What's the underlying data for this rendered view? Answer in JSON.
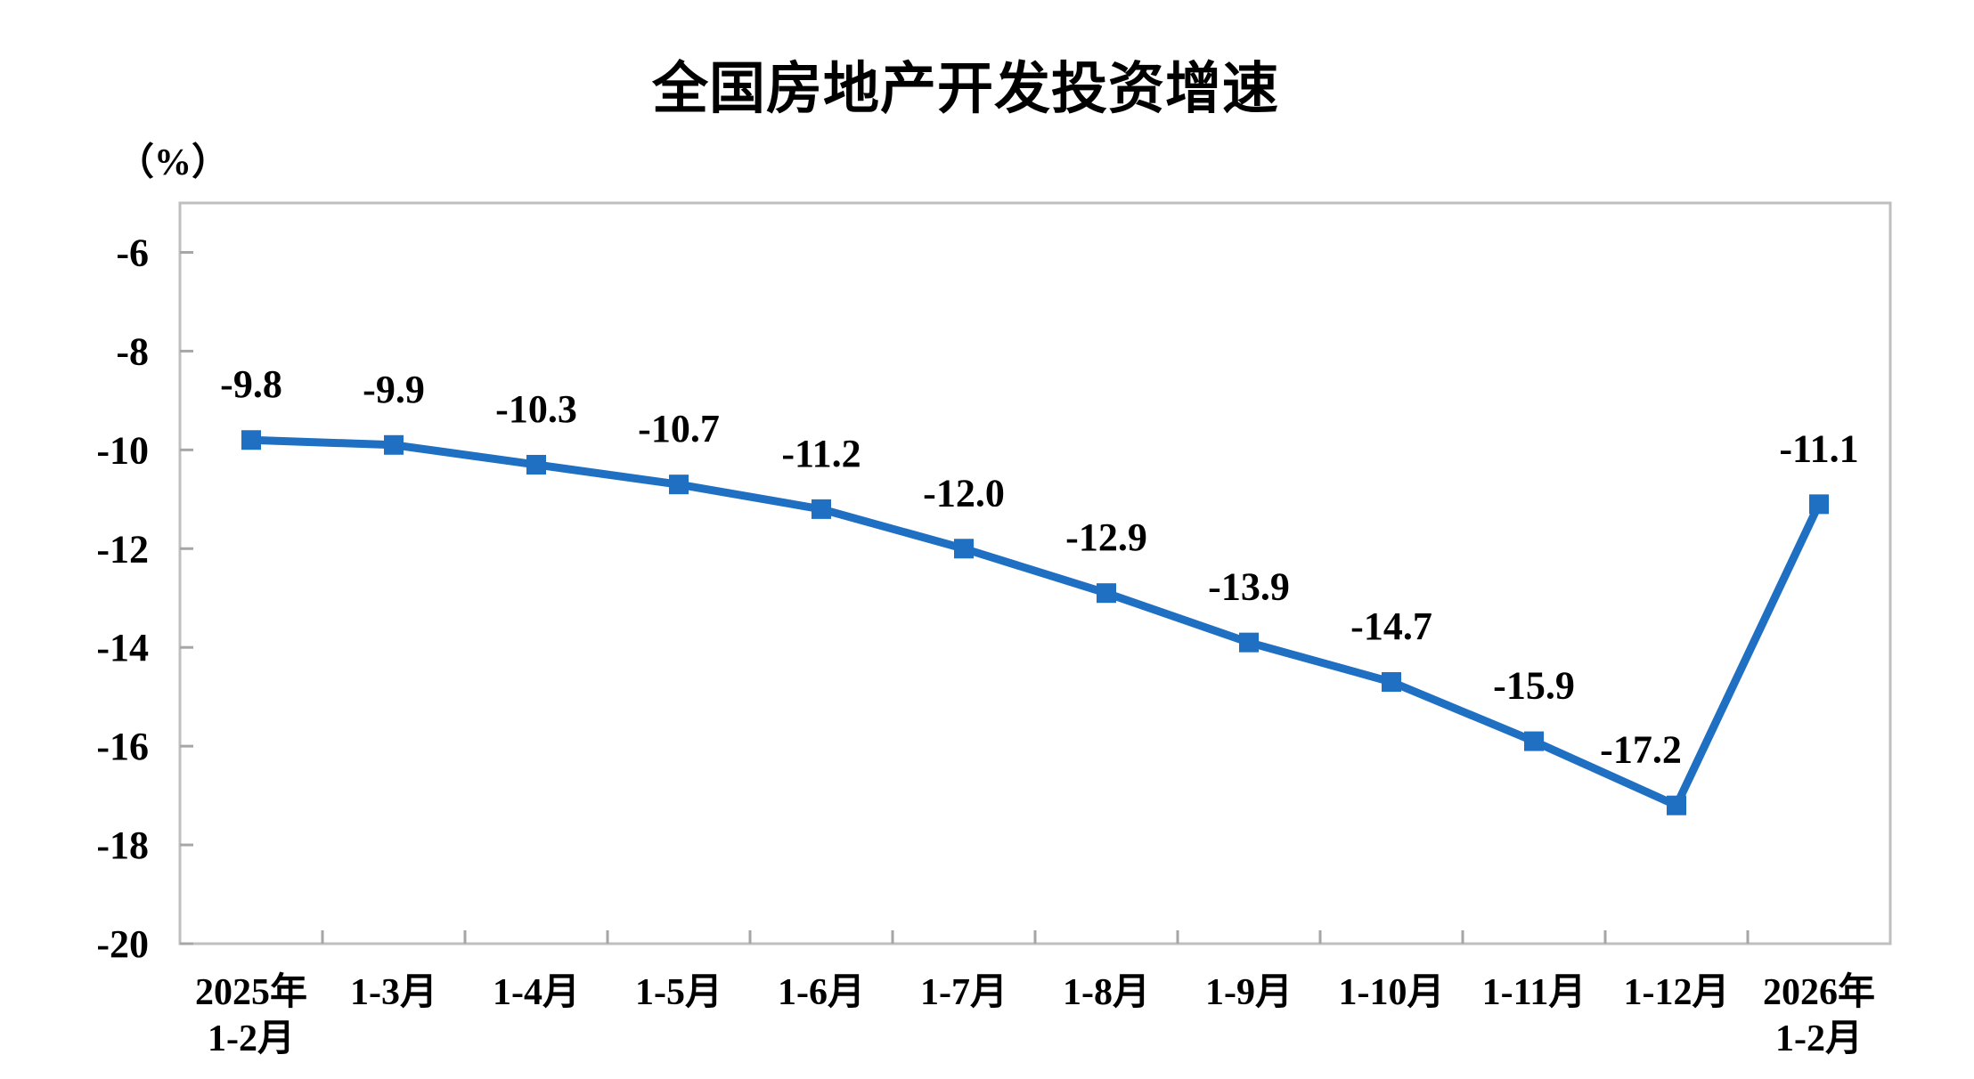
{
  "title": "全国房地产开发投资增速",
  "unit_label": "（%）",
  "colors": {
    "series_blue": "#1F6FC2",
    "axis_border": "#BFBFBF",
    "tick_mark": "#A6A6A6",
    "text": "#000000",
    "background": "#FFFFFF"
  },
  "chart_data": {
    "type": "line",
    "title": "全国房地产开发投资增速",
    "ylabel": "（%）",
    "xlabel": "",
    "categories": [
      "2025年\n1-2月",
      "1-3月",
      "1-4月",
      "1-5月",
      "1-6月",
      "1-7月",
      "1-8月",
      "1-9月",
      "1-10月",
      "1-11月",
      "1-12月",
      "2026年\n1-2月"
    ],
    "values": [
      -9.8,
      -9.9,
      -10.3,
      -10.7,
      -11.2,
      -12.0,
      -12.9,
      -13.9,
      -14.7,
      -15.9,
      -17.2,
      -11.1
    ],
    "data_labels": [
      "-9.8",
      "-9.9",
      "-10.3",
      "-10.7",
      "-11.2",
      "-12.0",
      "-12.9",
      "-13.9",
      "-14.7",
      "-15.9",
      "-17.2",
      "-11.1"
    ],
    "y_ticks": [
      -6,
      -8,
      -10,
      -12,
      -14,
      -16,
      -18,
      -20
    ],
    "y_tick_labels": [
      "-6",
      "-8",
      "-10",
      "-12",
      "-14",
      "-16",
      "-18",
      "-20"
    ],
    "ylim": [
      -20,
      -5
    ],
    "grid": false,
    "legend": "none",
    "marker": "square",
    "line_color": "#1F6FC2"
  }
}
